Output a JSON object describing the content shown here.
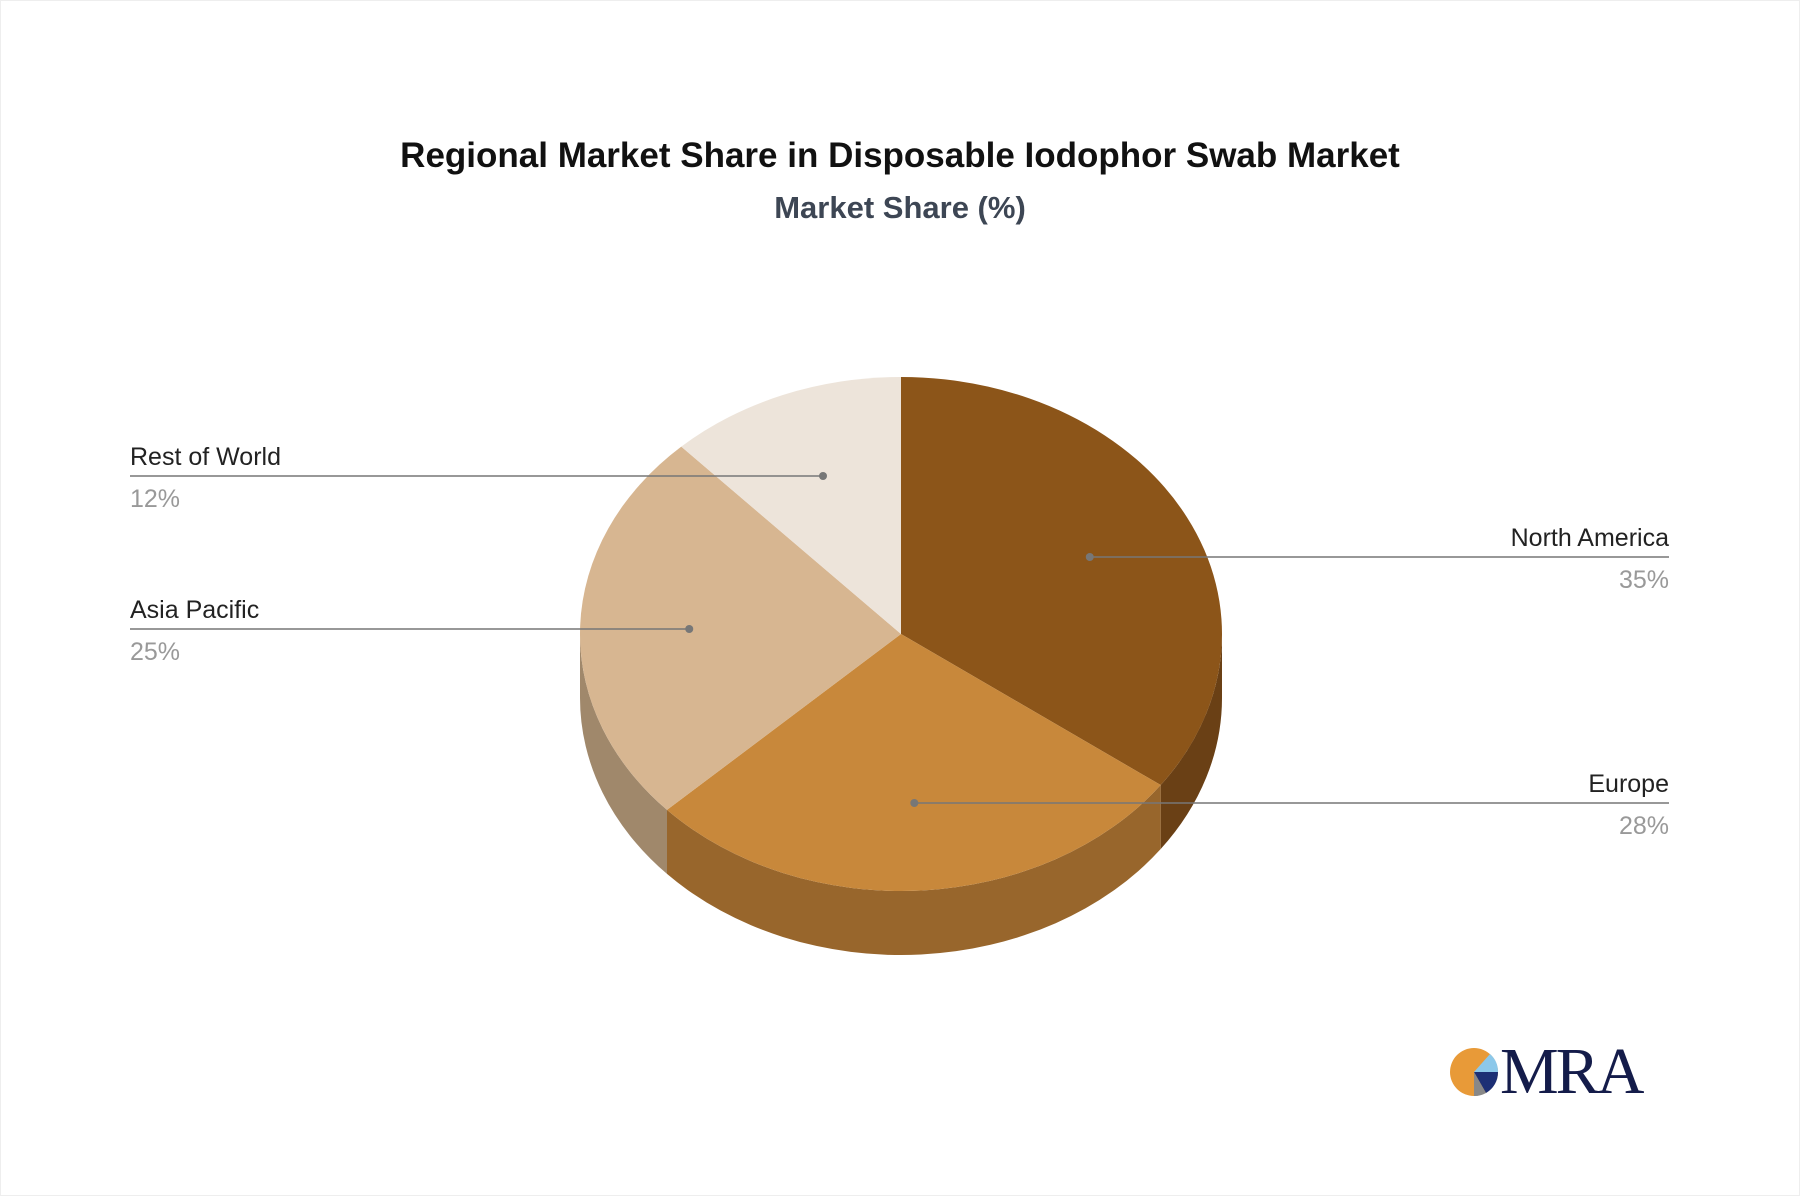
{
  "chart_data": {
    "type": "pie",
    "title": "Regional Market Share in Disposable Iodophor Swab Market",
    "subtitle": "Market Share (%)",
    "style": "3d",
    "slices": [
      {
        "label": "North America",
        "value": 35,
        "pct_label": "35%",
        "color": "#8c5519",
        "side_color": "#6a4015"
      },
      {
        "label": "Europe",
        "value": 28,
        "pct_label": "28%",
        "color": "#c8883b",
        "side_color": "#98662c"
      },
      {
        "label": "Asia Pacific",
        "value": 25,
        "pct_label": "25%",
        "color": "#d7b691",
        "side_color": "#a0886b"
      },
      {
        "label": "Rest of World",
        "value": 12,
        "pct_label": "12%",
        "color": "#ede4da",
        "side_color": "#b5aca2"
      }
    ]
  },
  "logo": {
    "text": "MRA"
  }
}
